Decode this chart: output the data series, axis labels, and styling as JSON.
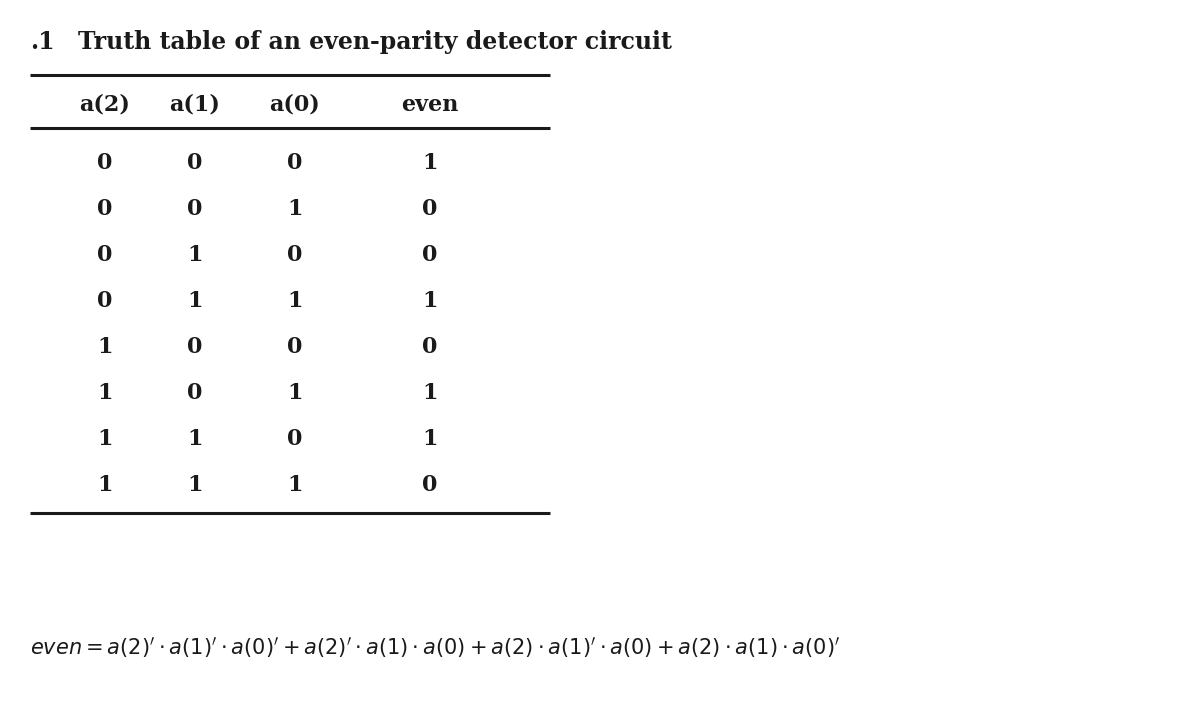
{
  "title_prefix": ".1",
  "title_text": "Truth table of an even-parity detector circuit",
  "columns": [
    "a(2)",
    "a(1)",
    "a(0)",
    "even"
  ],
  "rows": [
    [
      0,
      0,
      0,
      1
    ],
    [
      0,
      0,
      1,
      0
    ],
    [
      0,
      1,
      0,
      0
    ],
    [
      0,
      1,
      1,
      1
    ],
    [
      1,
      0,
      0,
      0
    ],
    [
      1,
      0,
      1,
      1
    ],
    [
      1,
      1,
      0,
      1
    ],
    [
      1,
      1,
      1,
      0
    ]
  ],
  "bg_color": "#ffffff",
  "text_color": "#1a1a1a",
  "title_fontsize": 17,
  "header_fontsize": 16,
  "data_fontsize": 16,
  "equation_fontsize": 15
}
